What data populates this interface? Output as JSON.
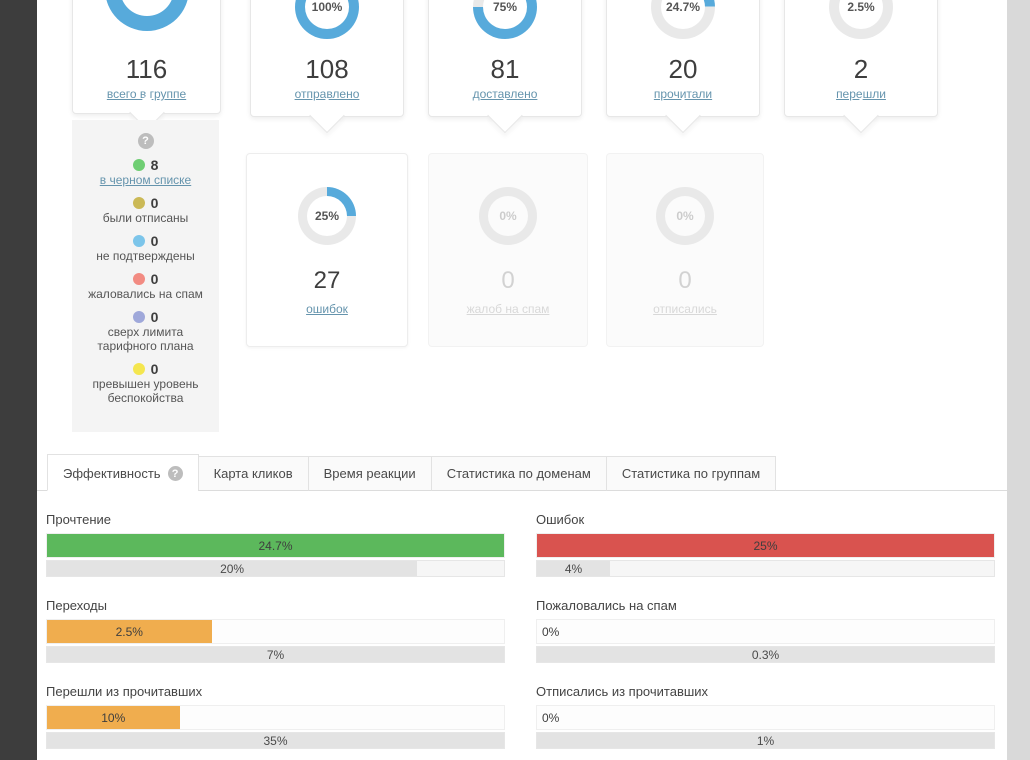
{
  "colors": {
    "blue": "#57aadb",
    "green": "#5cb85c",
    "orange": "#f0ad4e",
    "red": "#d9534f"
  },
  "icons": {
    "help": "?"
  },
  "summary_cards": [
    {
      "percent": "",
      "value": "116",
      "label": "всего в группе",
      "donut_pct": 100
    },
    {
      "percent": "100%",
      "value": "108",
      "label": "отправлено",
      "donut_pct": 100
    },
    {
      "percent": "75%",
      "value": "81",
      "label": "доставлено",
      "donut_pct": 75
    },
    {
      "percent": "24.7%",
      "value": "20",
      "label": "прочитали",
      "donut_pct": 24.7
    },
    {
      "percent": "2.5%",
      "value": "2",
      "label": "перешли",
      "donut_pct": 2.5
    }
  ],
  "legend": {
    "items": [
      {
        "color": "#6fce73",
        "value": "8",
        "label": "в черном списке"
      },
      {
        "color": "#cbb956",
        "value": "0",
        "label": "были отписаны"
      },
      {
        "color": "#7cc5ea",
        "value": "0",
        "label": "не подтверждены"
      },
      {
        "color": "#f28b82",
        "value": "0",
        "label": "жаловались на спам"
      },
      {
        "color": "#9fa8da",
        "value": "0",
        "label": "сверх лимита тарифного плана"
      },
      {
        "color": "#f4e64f",
        "value": "0",
        "label": "превышен уровень беспокойства"
      }
    ]
  },
  "detail_cards": [
    {
      "percent": "25%",
      "value": "27",
      "label": "ошибок",
      "donut_pct": 25
    },
    {
      "percent": "0%",
      "value": "0",
      "label": "жалоб на спам",
      "donut_pct": 0
    },
    {
      "percent": "0%",
      "value": "0",
      "label": "отписались",
      "donut_pct": 0
    }
  ],
  "tabs": [
    {
      "label": "Эффективность"
    },
    {
      "label": "Карта кликов"
    },
    {
      "label": "Время реакции"
    },
    {
      "label": "Статистика по доменам"
    },
    {
      "label": "Статистика по группам"
    }
  ],
  "metrics": {
    "left": [
      {
        "title": "Прочтение",
        "value_label": "24.7%",
        "value_pct": 100,
        "avg_label": "20%",
        "avg_pct": 81
      },
      {
        "title": "Переходы",
        "value_label": "2.5%",
        "value_pct": 36,
        "avg_label": "7%",
        "avg_pct": 100
      },
      {
        "title": "Перешли из прочитавших",
        "value_label": "10%",
        "value_pct": 29,
        "avg_label": "35%",
        "avg_pct": 100
      }
    ],
    "right": [
      {
        "title": "Ошибок",
        "value_label": "25%",
        "value_pct": 100,
        "avg_label": "4%",
        "avg_pct": 16
      },
      {
        "title": "Пожаловались на спам",
        "value_label": "0%",
        "value_pct": 0,
        "avg_label": "0.3%",
        "avg_pct": 100
      },
      {
        "title": "Отписались из прочитавших",
        "value_label": "0%",
        "value_pct": 0,
        "avg_label": "1%",
        "avg_pct": 100
      }
    ]
  }
}
